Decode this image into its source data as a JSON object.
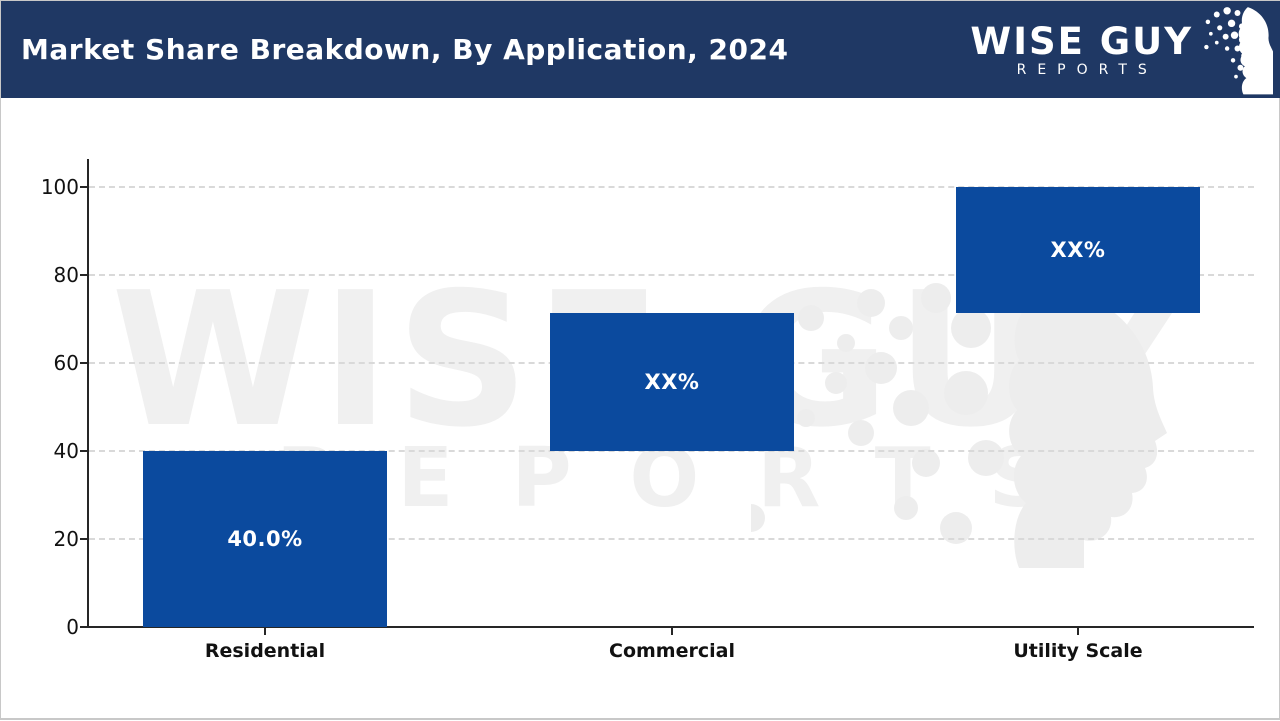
{
  "header": {
    "title": "Market Share Breakdown, By Application, 2024",
    "logo_line1": "WISE GUY",
    "logo_line2": "REPORTS"
  },
  "watermark": {
    "line1": "WISE GUY",
    "line2": "REPORTS"
  },
  "chart_data": {
    "type": "bar",
    "subtype": "floating-segment-waterfall",
    "title": "Market Share Breakdown, By Application, 2024",
    "categories": [
      "Residential",
      "Commercial",
      "Utility Scale"
    ],
    "segments": [
      {
        "category": "Residential",
        "start": 0,
        "end": 40,
        "value_label": "40.0%"
      },
      {
        "category": "Commercial",
        "start": 40,
        "end": 71.3,
        "value_label": "XX%"
      },
      {
        "category": "Utility Scale",
        "start": 71.3,
        "end": 100,
        "value_label": "XX%"
      }
    ],
    "yticks": [
      0,
      20,
      40,
      60,
      80,
      100
    ],
    "ylim": [
      0,
      105
    ],
    "xlabel": "",
    "ylabel": "",
    "legend": "none",
    "grid": "horizontal-dashed",
    "colors": {
      "bar": "#0b4a9e",
      "bar_label": "#ffffff",
      "axis": "#262626",
      "gridline": "#d9d9d9",
      "header_bg": "#1f3864",
      "watermark": "#f0f0f0"
    }
  }
}
